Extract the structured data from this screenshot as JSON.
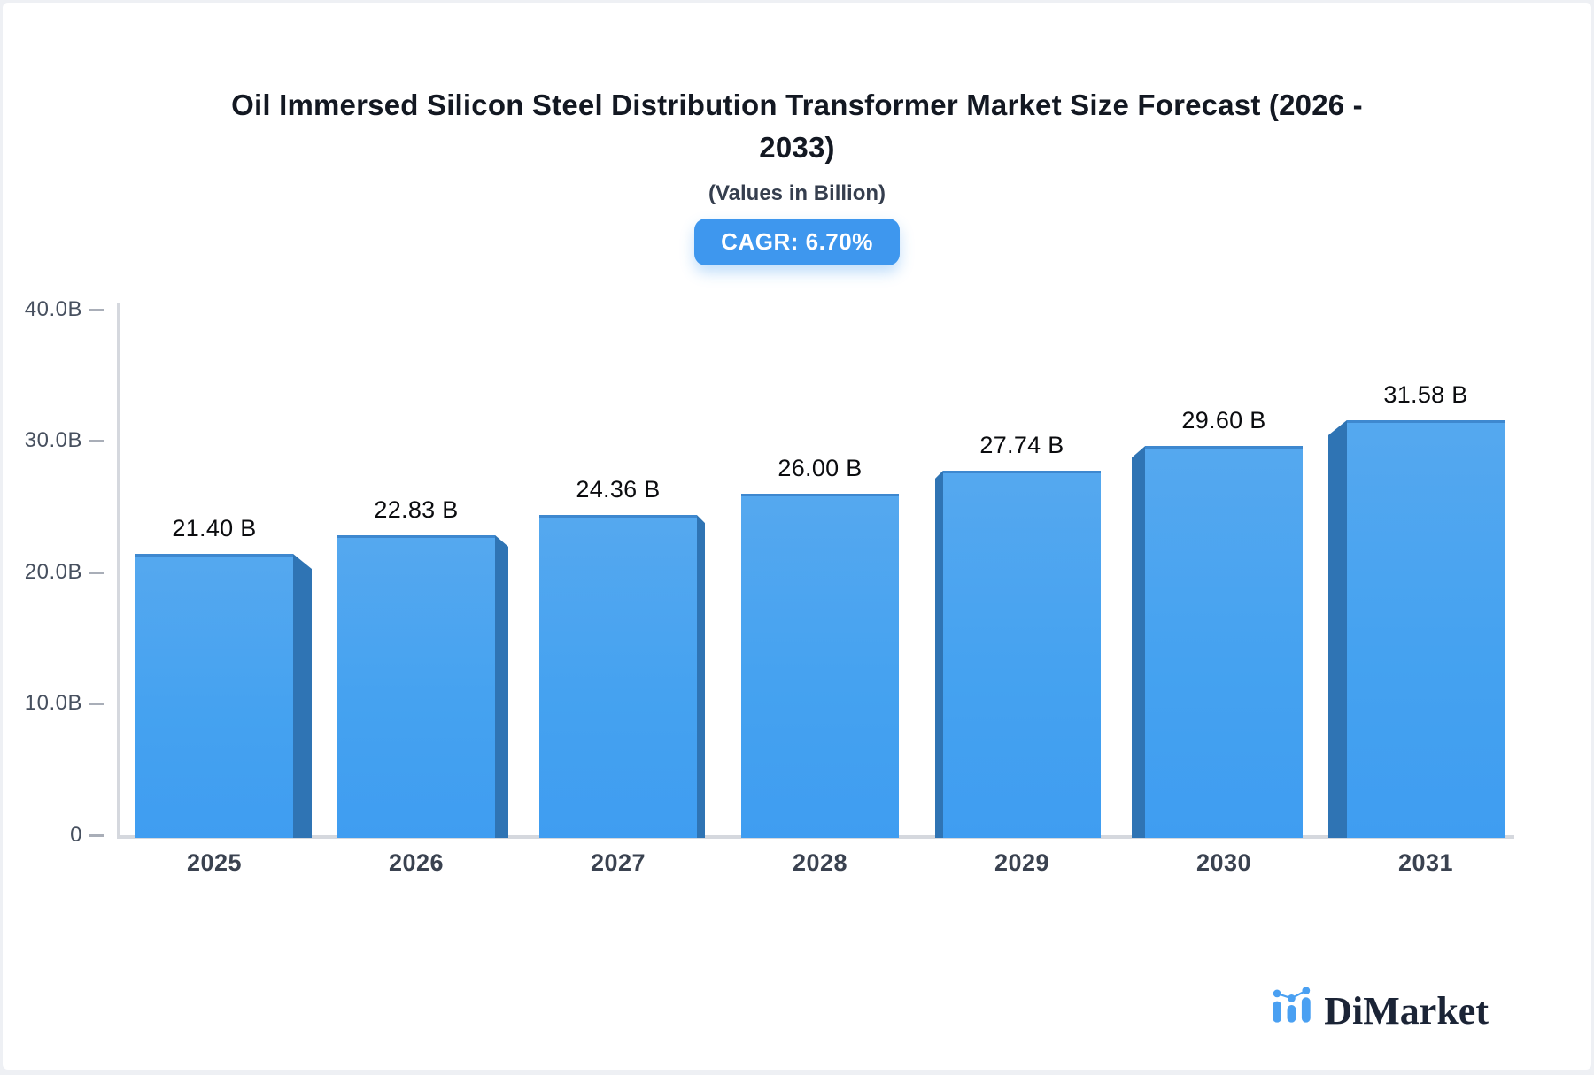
{
  "header": {
    "title_line1": "Oil Immersed Silicon Steel Distribution Transformer Market Size Forecast (2026 -",
    "title_line2": "2033)",
    "subtitle": "(Values in Billion)",
    "cagr_badge": "CAGR: 6.70%"
  },
  "chart_data": {
    "type": "bar",
    "title": "Oil Immersed Silicon Steel Distribution Transformer Market Size Forecast (2026 - 2033)",
    "subtitle": "(Values in Billion)",
    "cagr": "6.70%",
    "categories": [
      "2025",
      "2026",
      "2027",
      "2028",
      "2029",
      "2030",
      "2031"
    ],
    "values": [
      21.4,
      22.83,
      24.36,
      26.0,
      27.74,
      29.6,
      31.58
    ],
    "value_labels": [
      "21.40 B",
      "22.83 B",
      "24.36 B",
      "26.00 B",
      "27.74 B",
      "29.60 B",
      "31.58 B"
    ],
    "ylim": [
      0,
      40
    ],
    "yticks": [
      {
        "value": 40,
        "label": "40.0B"
      },
      {
        "value": 30,
        "label": "30.0B"
      },
      {
        "value": 20,
        "label": "20.0B"
      },
      {
        "value": 10,
        "label": "10.0B"
      },
      {
        "value": 0,
        "label": "0"
      }
    ],
    "grid": false,
    "legend": null,
    "colors": {
      "bar_face": "#45a2f0",
      "bar_side": "#2f74b4",
      "badge": "#3e97ee",
      "axis": "#d5d8de"
    }
  },
  "branding": {
    "name": "DiMarket",
    "icon": "bar-chart-logo-icon"
  }
}
